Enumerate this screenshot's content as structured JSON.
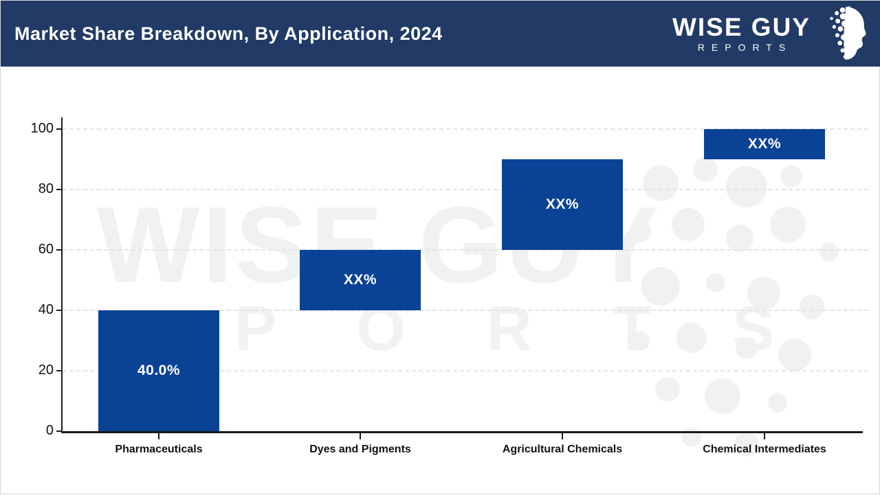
{
  "header": {
    "title": "Market Share Breakdown, By Application, 2024",
    "logo": {
      "line1": "WISE GUY",
      "line2": "REPORTS"
    }
  },
  "watermark": {
    "line1": "WISE GUY",
    "line2": "P O R T S"
  },
  "chart_data": {
    "type": "bar",
    "subtype": "waterfall",
    "title": "Market Share Breakdown, By Application, 2024",
    "categories": [
      "Pharmaceuticals",
      "Dyes and Pigments",
      "Agricultural Chemicals",
      "Chemical Intermediates"
    ],
    "segments": [
      {
        "category": "Pharmaceuticals",
        "start": 0,
        "end": 40,
        "label": "40.0%"
      },
      {
        "category": "Dyes and Pigments",
        "start": 40,
        "end": 60,
        "label": "XX%"
      },
      {
        "category": "Agricultural Chemicals",
        "start": 60,
        "end": 90,
        "label": "XX%"
      },
      {
        "category": "Chemical Intermediates",
        "start": 90,
        "end": 100,
        "label": "XX%"
      }
    ],
    "yticks": [
      0,
      20,
      40,
      60,
      80,
      100
    ],
    "ylim": [
      0,
      100
    ],
    "xlabel": "",
    "ylabel": "",
    "grid": true,
    "legend_position": "none",
    "bar_color": "#0a4296"
  },
  "colors": {
    "header_bg": "#213a66",
    "bar": "#0a4296",
    "axis": "#1a1a1a",
    "gridline": "#e4e4e4",
    "watermark": "#f1f1f1",
    "frame_border": "#d9d9d9"
  }
}
